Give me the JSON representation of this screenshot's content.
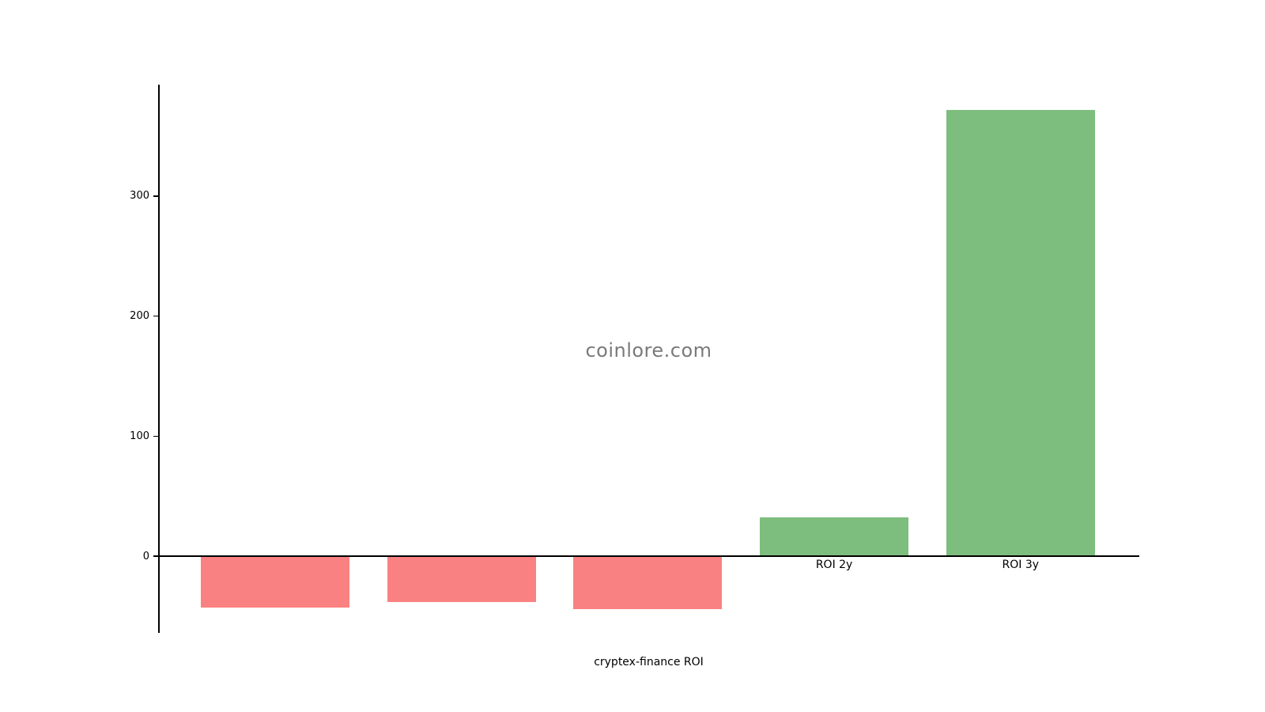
{
  "figure": {
    "title": "cryptex-finance ROI",
    "watermark": "coinlore.com",
    "background_color": "#ffffff",
    "axis_color": "#000000",
    "watermark_color": "#7a7a7a"
  },
  "chart_data": {
    "type": "bar",
    "title": "cryptex-finance ROI",
    "categories": [
      "",
      "",
      "",
      "ROI 2y",
      "ROI 3y"
    ],
    "values": [
      -43,
      -38,
      -44,
      32,
      372
    ],
    "series": [
      {
        "name": "ROI",
        "values": [
          -43,
          -38,
          -44,
          32,
          372
        ]
      }
    ],
    "bar_colors": [
      "#fa8181",
      "#fa8181",
      "#fa8181",
      "#7dbd7d",
      "#7dbd7d"
    ],
    "negative_color": "#fa8181",
    "positive_color": "#7dbd7d",
    "xlabel": "",
    "ylabel": "",
    "yticks": [
      0,
      100,
      200,
      300
    ],
    "ytick_labels": [
      "0",
      "100",
      "200",
      "300"
    ],
    "ylim": [
      -64,
      393
    ],
    "grid": false,
    "legend_position": "none",
    "baseline": 0,
    "x_axis_at_zero": true,
    "visible_x_tick_labels": [
      "ROI 2y",
      "ROI 3y"
    ],
    "watermark": "coinlore.com"
  }
}
